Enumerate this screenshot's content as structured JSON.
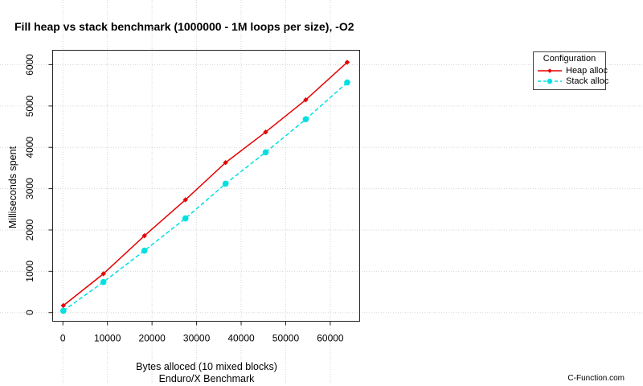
{
  "page": {
    "footer_brand": "C-Function.com"
  },
  "legend": {
    "title": "Configuration"
  },
  "chart_data": {
    "type": "line",
    "title": "Fill heap vs stack benchmark (1000000 - 1M loops per size), -O2",
    "xlabel": "Bytes alloced (10 mixed blocks)",
    "xlabel2": "Enduro/X Benchmark",
    "ylabel": "Milliseconds spent",
    "x": [
      100,
      9100,
      18300,
      27500,
      36500,
      45500,
      54500,
      63800
    ],
    "series": [
      {
        "name": "Heap alloc",
        "color": "#e60000",
        "dash": "solid",
        "marker": "diamond",
        "values": [
          170,
          940,
          1860,
          2730,
          3630,
          4370,
          5150,
          6060
        ]
      },
      {
        "name": "Stack alloc",
        "color": "#00e0e0",
        "dash": "dashed",
        "marker": "circle",
        "values": [
          45,
          740,
          1500,
          2280,
          3120,
          3880,
          4680,
          5570
        ]
      }
    ],
    "xticks": [
      0,
      10000,
      20000,
      30000,
      40000,
      50000,
      60000
    ],
    "yticks": [
      0,
      1000,
      2000,
      3000,
      4000,
      5000,
      6000
    ],
    "xlim": [
      -2300,
      66600
    ],
    "ylim": [
      -210,
      6350
    ],
    "grid": true,
    "grid_full_canvas": true,
    "legend_position": "outside-top-right",
    "colors": {
      "grid": "#d6d6d6",
      "frame": "#222222",
      "text": "#000000"
    }
  }
}
